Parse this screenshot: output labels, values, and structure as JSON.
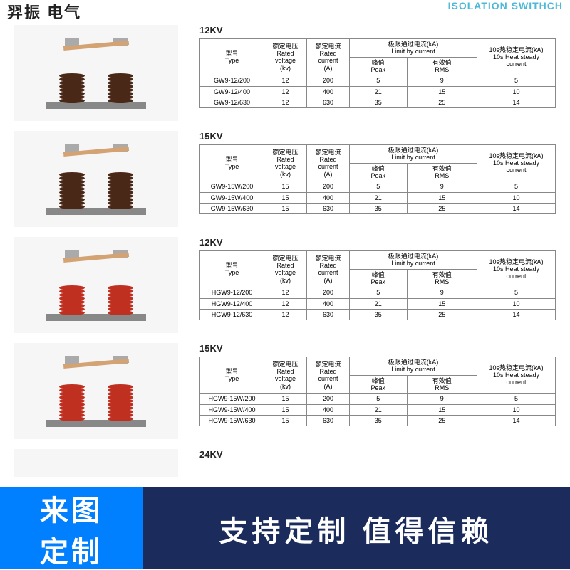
{
  "header": {
    "left": "羿振 电气",
    "right": "ISOLATION SWITHCH"
  },
  "colors": {
    "header_right": "#4db8d8",
    "brown_insulator": "#4a2818",
    "red_insulator": "#c03020",
    "banner_bg": "#1a2b5c",
    "badge_bg": "#007fff"
  },
  "table_headers": {
    "type": "型号\nType",
    "voltage": "额定电压\nRated\nvoltage\n(kv)",
    "current": "额定电流\nRated\ncurrent\n(A)",
    "limit": "极限通过电流(kA)\nLimit by current",
    "peak": "峰值\nPeak",
    "rms": "有效值\nRMS",
    "heat": "10s热稳定电流(kA)\n10s Heat steady\ncurrent"
  },
  "sections": [
    {
      "title": "12KV",
      "insulator_color": "brown",
      "rows": [
        {
          "type": "GW9-12/200",
          "v": "12",
          "a": "200",
          "peak": "5",
          "rms": "9",
          "heat": "5"
        },
        {
          "type": "GW9-12/400",
          "v": "12",
          "a": "400",
          "peak": "21",
          "rms": "15",
          "heat": "10"
        },
        {
          "type": "GW9-12/630",
          "v": "12",
          "a": "630",
          "peak": "35",
          "rms": "25",
          "heat": "14"
        }
      ]
    },
    {
      "title": "15KV",
      "insulator_color": "brown",
      "rows": [
        {
          "type": "GW9-15W/200",
          "v": "15",
          "a": "200",
          "peak": "5",
          "rms": "9",
          "heat": "5"
        },
        {
          "type": "GW9-15W/400",
          "v": "15",
          "a": "400",
          "peak": "21",
          "rms": "15",
          "heat": "10"
        },
        {
          "type": "GW9-15W/630",
          "v": "15",
          "a": "630",
          "peak": "35",
          "rms": "25",
          "heat": "14"
        }
      ]
    },
    {
      "title": "12KV",
      "insulator_color": "red",
      "rows": [
        {
          "type": "HGW9-12/200",
          "v": "12",
          "a": "200",
          "peak": "5",
          "rms": "9",
          "heat": "5"
        },
        {
          "type": "HGW9-12/400",
          "v": "12",
          "a": "400",
          "peak": "21",
          "rms": "15",
          "heat": "10"
        },
        {
          "type": "HGW9-12/630",
          "v": "12",
          "a": "630",
          "peak": "35",
          "rms": "25",
          "heat": "14"
        }
      ]
    },
    {
      "title": "15KV",
      "insulator_color": "red",
      "rows": [
        {
          "type": "HGW9-15W/200",
          "v": "15",
          "a": "200",
          "peak": "5",
          "rms": "9",
          "heat": "5"
        },
        {
          "type": "HGW9-15W/400",
          "v": "15",
          "a": "400",
          "peak": "21",
          "rms": "15",
          "heat": "10"
        },
        {
          "type": "HGW9-15W/630",
          "v": "15",
          "a": "630",
          "peak": "35",
          "rms": "25",
          "heat": "14"
        }
      ]
    }
  ],
  "extra_title": "24KV",
  "footer": {
    "badge_line1": "来图",
    "badge_line2": "定制",
    "main_text": "支持定制 值得信赖"
  }
}
